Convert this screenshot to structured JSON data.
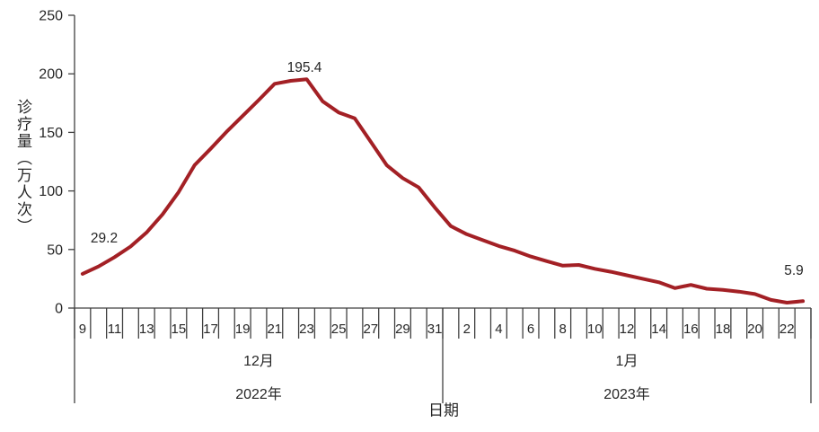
{
  "chart_data": {
    "type": "line",
    "title": "",
    "ylabel": "诊疗量（万人次）",
    "xlabel": "日期",
    "ylim": [
      0,
      250
    ],
    "yticks": [
      0,
      50,
      100,
      150,
      200,
      250
    ],
    "grid": false,
    "legend": "none",
    "line_color": "#a32025",
    "axis_color": "#404040",
    "text_color": "#262626",
    "segments": [
      {
        "month_label": "12月",
        "year_label": "2022年",
        "points": [
          {
            "day": 9,
            "value": 29.2,
            "label": "9"
          },
          {
            "day": 10,
            "value": 35.5,
            "label": ""
          },
          {
            "day": 11,
            "value": 43.5,
            "label": "11"
          },
          {
            "day": 12,
            "value": 52.5,
            "label": ""
          },
          {
            "day": 13,
            "value": 64.5,
            "label": "13"
          },
          {
            "day": 14,
            "value": 80,
            "label": ""
          },
          {
            "day": 15,
            "value": 99,
            "label": "15"
          },
          {
            "day": 16,
            "value": 122,
            "label": ""
          },
          {
            "day": 17,
            "value": 136,
            "label": "17"
          },
          {
            "day": 18,
            "value": 150.5,
            "label": ""
          },
          {
            "day": 19,
            "value": 164,
            "label": "19"
          },
          {
            "day": 20,
            "value": 177.5,
            "label": ""
          },
          {
            "day": 21,
            "value": 191.5,
            "label": "21"
          },
          {
            "day": 22,
            "value": 194,
            "label": ""
          },
          {
            "day": 23,
            "value": 195.4,
            "label": "23"
          },
          {
            "day": 24,
            "value": 176.5,
            "label": ""
          },
          {
            "day": 25,
            "value": 167,
            "label": "25"
          },
          {
            "day": 26,
            "value": 162,
            "label": ""
          },
          {
            "day": 27,
            "value": 142,
            "label": "27"
          },
          {
            "day": 28,
            "value": 122,
            "label": ""
          },
          {
            "day": 29,
            "value": 111,
            "label": "29"
          },
          {
            "day": 30,
            "value": 103,
            "label": ""
          },
          {
            "day": 31,
            "value": 86,
            "label": "31"
          }
        ]
      },
      {
        "month_label": "1月",
        "year_label": "2023年",
        "points": [
          {
            "day": 1,
            "value": 70,
            "label": ""
          },
          {
            "day": 2,
            "value": 63,
            "label": "2"
          },
          {
            "day": 3,
            "value": 58,
            "label": ""
          },
          {
            "day": 4,
            "value": 53,
            "label": "4"
          },
          {
            "day": 5,
            "value": 49,
            "label": ""
          },
          {
            "day": 6,
            "value": 44,
            "label": "6"
          },
          {
            "day": 7,
            "value": 40,
            "label": ""
          },
          {
            "day": 8,
            "value": 36.2,
            "label": "8"
          },
          {
            "day": 9,
            "value": 36.8,
            "label": ""
          },
          {
            "day": 10,
            "value": 33.5,
            "label": "10"
          },
          {
            "day": 11,
            "value": 31,
            "label": ""
          },
          {
            "day": 12,
            "value": 28,
            "label": "12"
          },
          {
            "day": 13,
            "value": 25,
            "label": ""
          },
          {
            "day": 14,
            "value": 22,
            "label": "14"
          },
          {
            "day": 15,
            "value": 17,
            "label": ""
          },
          {
            "day": 16,
            "value": 19.8,
            "label": "16"
          },
          {
            "day": 17,
            "value": 16.5,
            "label": ""
          },
          {
            "day": 18,
            "value": 15.5,
            "label": "18"
          },
          {
            "day": 19,
            "value": 14,
            "label": ""
          },
          {
            "day": 20,
            "value": 12,
            "label": "20"
          },
          {
            "day": 21,
            "value": 7,
            "label": ""
          },
          {
            "day": 22,
            "value": 4.6,
            "label": "22"
          },
          {
            "day": 23,
            "value": 5.9,
            "label": ""
          }
        ]
      }
    ],
    "annotations": [
      {
        "text": "29.2",
        "segment": 0,
        "point_index": 0
      },
      {
        "text": "195.4",
        "segment": 0,
        "point_index": 14
      },
      {
        "text": "5.9",
        "segment": 1,
        "point_index": 22
      }
    ]
  }
}
